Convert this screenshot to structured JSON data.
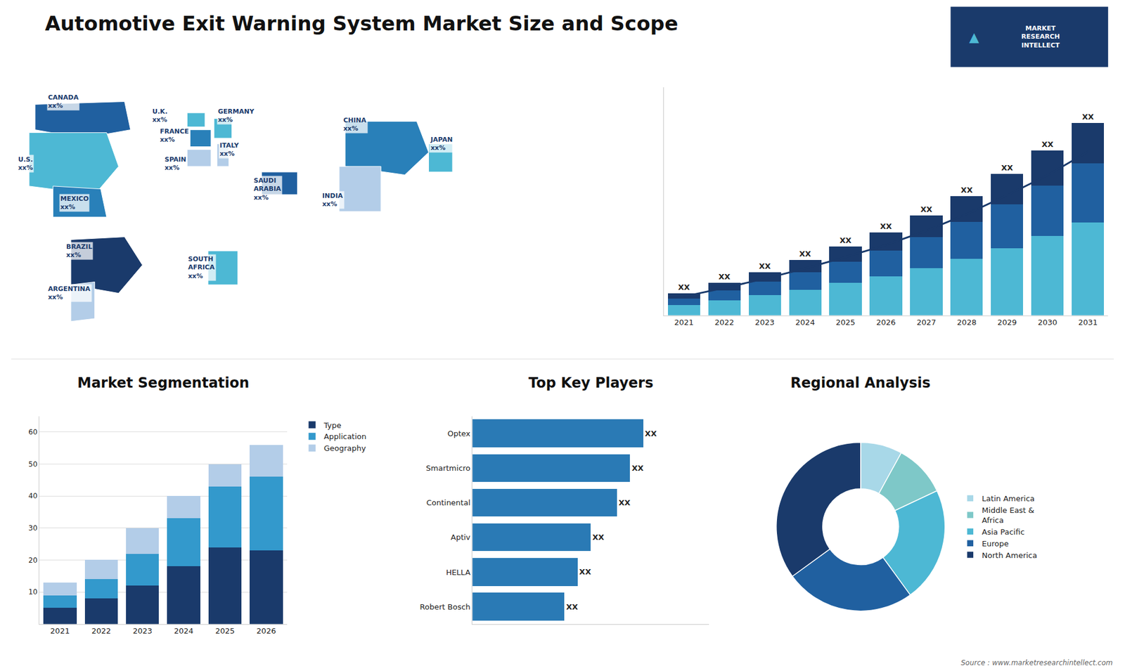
{
  "title": "Automotive Exit Warning System Market Size and Scope",
  "annotations": [
    "Source : www.marketresearchintellect.com",
    "MARKET\nRESEARCH\nINTELLECT",
    "▲"
  ],
  "chart_data": [
    {
      "type": "map",
      "categories": [
        "CANADA",
        "U.S.",
        "MEXICO",
        "BRAZIL",
        "ARGENTINA",
        "U.K.",
        "FRANCE",
        "SPAIN",
        "GERMANY",
        "ITALY",
        "SAUDI\nARABIA",
        "SOUTH\nAFRICA",
        "CHINA",
        "INDIA",
        "JAPAN"
      ],
      "value_labels": [
        "xx%",
        "xx%",
        "xx%",
        "xx%",
        "xx%",
        "xx%",
        "xx%",
        "xx%",
        "xx%",
        "xx%",
        "xx%",
        "xx%",
        "xx%",
        "xx%",
        "xx%"
      ],
      "colors": [
        "#2060a0",
        "#4db8d4",
        "#2980b9",
        "#1a3a6b",
        "#b3cde8",
        "#4db8d4",
        "#2980b9",
        "#b3cde8",
        "#4db8d4",
        "#b3cde8",
        "#2060a0",
        "#4db8d4",
        "#2980b9",
        "#b3cde8",
        "#4db8d4"
      ]
    },
    {
      "type": "bar",
      "stacked": true,
      "data_labels": true,
      "tick_labels": "x",
      "categories": [
        "2021",
        "2022",
        "2023",
        "2024",
        "2025",
        "2026",
        "2027",
        "2028",
        "2029",
        "2030",
        "2031"
      ],
      "series": [
        {
          "color": "#4db8d4",
          "values": [
            1.5,
            2.2,
            3.0,
            3.8,
            4.8,
            5.8,
            7.0,
            8.4,
            10.0,
            11.8,
            13.8
          ]
        },
        {
          "color": "#2060a0",
          "values": [
            1.0,
            1.5,
            2.0,
            2.6,
            3.2,
            3.8,
            4.6,
            5.5,
            6.5,
            7.5,
            8.8
          ]
        },
        {
          "color": "#1a3a6b",
          "values": [
            0.8,
            1.1,
            1.4,
            1.8,
            2.2,
            2.7,
            3.2,
            3.8,
            4.5,
            5.2,
            6.0
          ],
          "value_labels": [
            "XX",
            "XX",
            "XX",
            "XX",
            "XX",
            "XX",
            "XX",
            "XX",
            "XX",
            "XX",
            "XX"
          ]
        },
        {
          "type": "line",
          "color": "#1a3a6b",
          "values": [
            2.805,
            4.08,
            5.44,
            6.97,
            8.67,
            10.455,
            12.58,
            15.045,
            17.85,
            20.825,
            24.31
          ]
        }
      ],
      "ylim": [
        0,
        33.89
      ]
    },
    {
      "type": "bar",
      "title": "Market Segmentation",
      "stacked": true,
      "grid": true,
      "legend": "upper right",
      "categories": [
        "2021",
        "2022",
        "2023",
        "2024",
        "2025",
        "2026"
      ],
      "series": [
        {
          "name": "Type",
          "color": "#1a3a6b",
          "values": [
            5,
            8,
            12,
            18,
            24,
            23
          ]
        },
        {
          "name": "Application",
          "color": "#3399cc",
          "values": [
            4,
            6,
            10,
            15,
            19,
            23
          ]
        },
        {
          "name": "Geography",
          "color": "#b3cde8",
          "values": [
            4,
            6,
            8,
            7,
            7,
            10
          ]
        }
      ],
      "ylim": [
        0,
        65
      ],
      "yticks": [
        10,
        20,
        30,
        40,
        50,
        60
      ]
    },
    {
      "type": "bar",
      "title": "Top Key Players",
      "orientation": "horizontal",
      "data_labels": true,
      "tick_labels": "y",
      "categories": [
        "Optex",
        "Smartmicro",
        "Continental",
        "Aptiv",
        "HELLA",
        "Robert Bosch"
      ],
      "values": [
        6.5,
        6.0,
        5.5,
        4.5,
        4.0,
        3.5
      ],
      "value_labels": [
        "XX",
        "XX",
        "XX",
        "XX",
        "XX",
        "XX"
      ],
      "color": "#2a7ab5",
      "xlim": [
        0,
        9
      ]
    },
    {
      "type": "donut",
      "title": "Regional Analysis",
      "legend": "right",
      "data_labels": false,
      "categories": [
        "Latin America",
        "Middle East &\nAfrica",
        "Asia Pacific",
        "Europe",
        "North America"
      ],
      "values": [
        8,
        10,
        22,
        25,
        35
      ],
      "colors": [
        "#a8d8e8",
        "#7ec8c8",
        "#4db8d4",
        "#2060a0",
        "#1a3a6b"
      ]
    }
  ]
}
